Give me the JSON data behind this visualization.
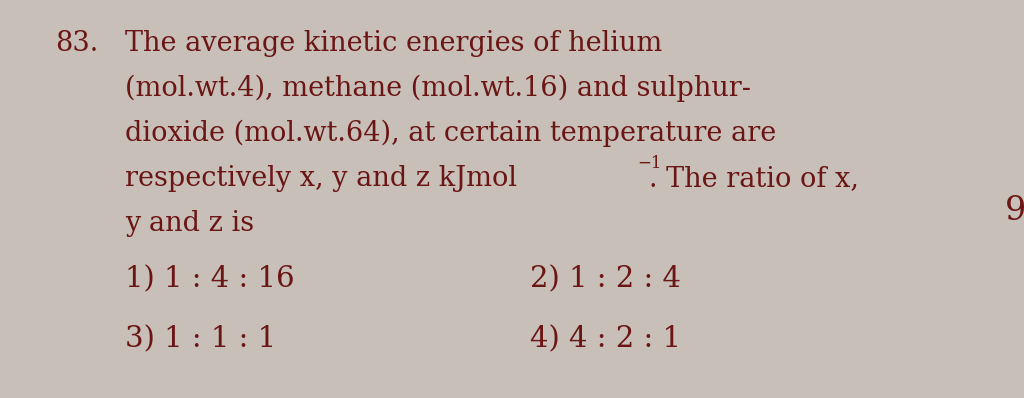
{
  "background_color": "#c8c0b8",
  "text_color": "#6B1515",
  "q_num": "83.",
  "line1": "The average kinetic energies of helium",
  "line2": "(mol.wt.4), methane (mol.wt.16) and sulphur-",
  "line3": "dioxide (mol.wt.64), at certain temperature are",
  "line4a": "respectively x, y and z kJmol",
  "line4b": "−1",
  "line4c": ". The ratio of x,",
  "line5": "y and z is",
  "opt1": "1) 1 : 4 : 16",
  "opt2": "2) 1 : 2 : 4",
  "opt3": "3) 1 : 1 : 1",
  "opt4": "4) 4 : 2 : 1",
  "side_num": "9",
  "font_size": 19.5,
  "font_size_super": 12,
  "font_size_opts": 21,
  "font_size_side": 24
}
